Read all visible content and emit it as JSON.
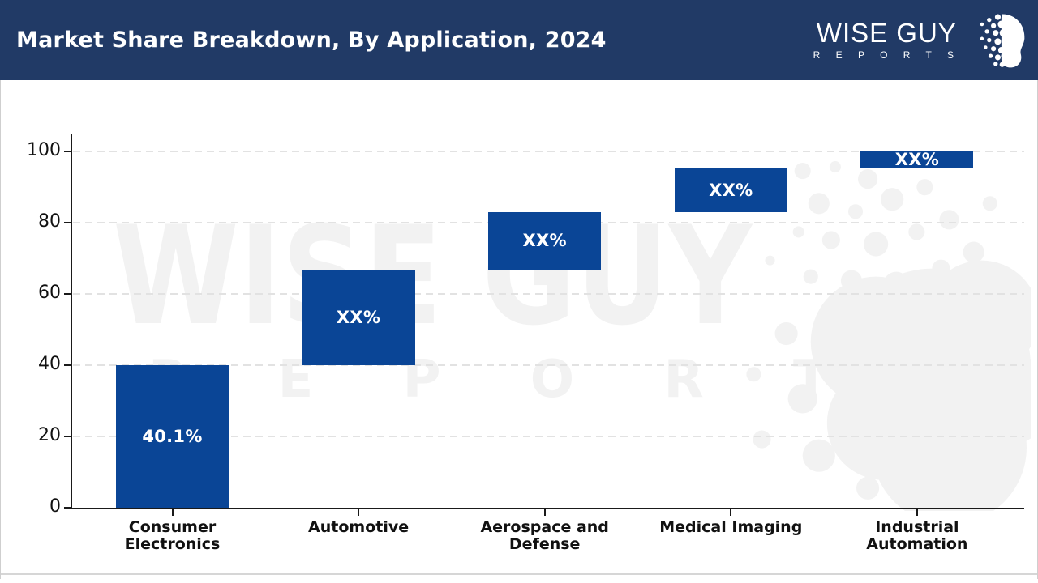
{
  "header": {
    "title": "Market Share Breakdown, By Application, 2024",
    "logo": {
      "brand": "WISE GUY",
      "sub": "R E P O R T S"
    }
  },
  "watermark": {
    "brand": "WISE GUY",
    "sub": "R E P O R T S"
  },
  "chart_data": {
    "type": "bar",
    "variant": "waterfall",
    "title": "Market Share Breakdown, By Application, 2024",
    "categories": [
      "Consumer\nElectronics",
      "Automotive",
      "Aerospace and\nDefense",
      "Medical Imaging",
      "Industrial\nAutomation"
    ],
    "segments": [
      {
        "category": "Consumer Electronics",
        "start": 0,
        "end": 40.1,
        "label": "40.1%"
      },
      {
        "category": "Automotive",
        "start": 40.1,
        "end": 66.8,
        "label": "XX%"
      },
      {
        "category": "Aerospace and Defense",
        "start": 66.8,
        "end": 83.0,
        "label": "XX%"
      },
      {
        "category": "Medical Imaging",
        "start": 83.0,
        "end": 95.4,
        "label": "XX%"
      },
      {
        "category": "Industrial Automation",
        "start": 95.4,
        "end": 100.0,
        "label": "XX%"
      }
    ],
    "yticks": [
      0,
      20,
      40,
      60,
      80,
      100
    ],
    "ylim": [
      0,
      105
    ],
    "xlabel": "",
    "ylabel": "",
    "grid": "horizontal-dashed",
    "legend": "none",
    "bar_color": "#0a4596",
    "bar_label_color": "#ffffff"
  },
  "colors": {
    "header_bg": "#213a66",
    "bar": "#0a4596",
    "grid": "#e2e2e2",
    "axis": "#1a1a1a",
    "watermark": "#f2f2f2",
    "border": "#cfcfcf"
  }
}
